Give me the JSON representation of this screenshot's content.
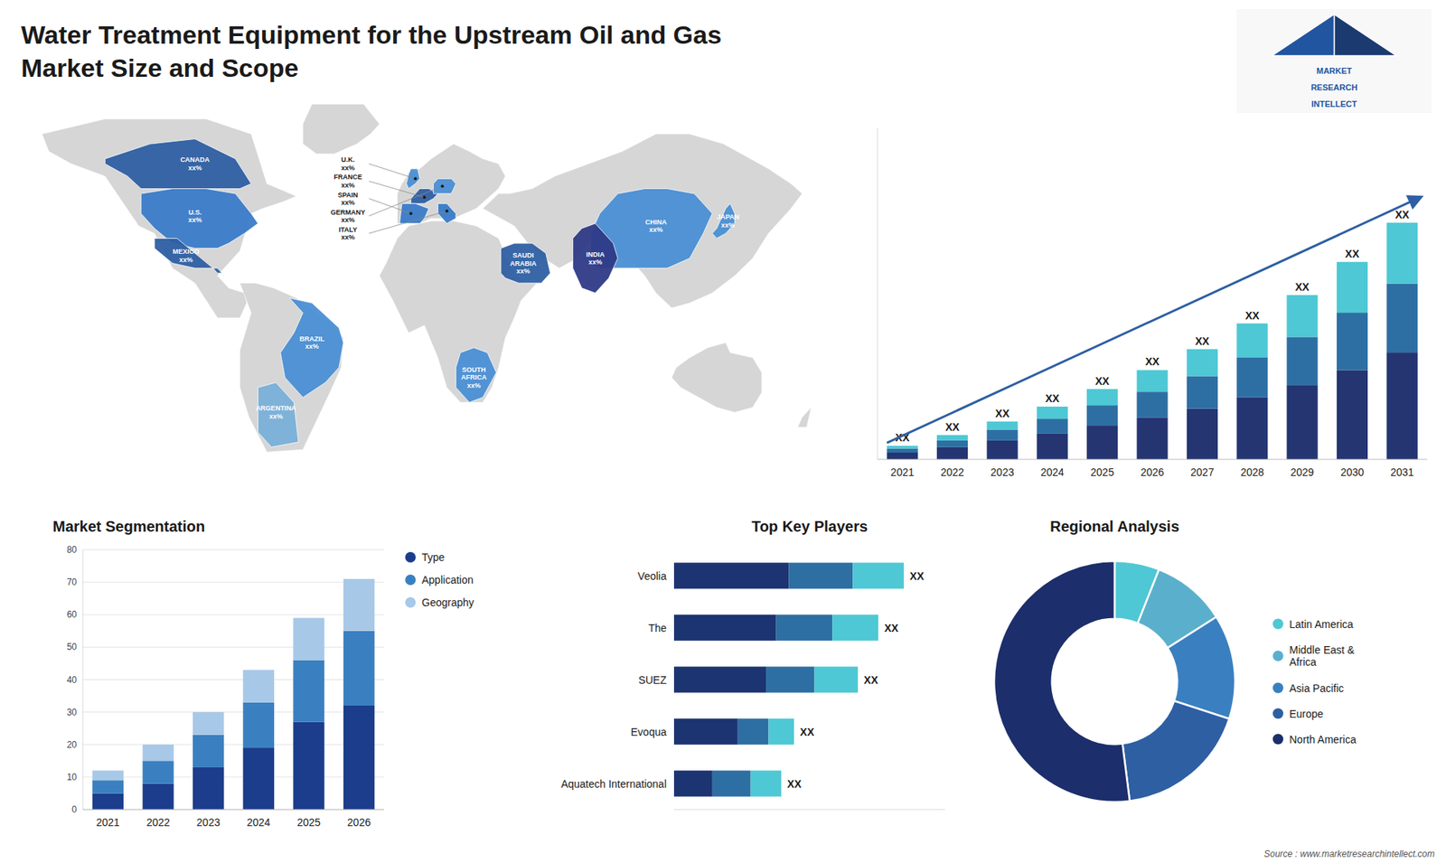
{
  "title": "Water Treatment Equipment for the Upstream Oil and Gas",
  "subtitle": "Market Size and Scope",
  "logo": [
    "MARKET",
    "RESEARCH",
    "INTELLECT"
  ],
  "source": "Source : www.marketresearchintellect.com",
  "chart_data": [
    {
      "type": "map",
      "annotations": [
        "U.S.\nxx%",
        "CANADA\nxx%",
        "MEXICO\nxx%",
        "BRAZIL\nxx%",
        "ARGENTINA\nxx%",
        "U.K.\nxx%",
        "FRANCE\nxx%",
        "SPAIN\nxx%",
        "GERMANY\nxx%",
        "ITALY\nxx%",
        "SAUDI\nARABIA\nxx%",
        "SOUTH\nAFRICA\nxx%",
        "CHINA\nxx%",
        "INDIA\nxx%",
        "JAPAN\nxx%"
      ]
    },
    {
      "type": "bar",
      "stacked": true,
      "categories": [
        2021,
        2022,
        2023,
        2024,
        2025,
        2026,
        2027,
        2028,
        2029,
        2030,
        2031
      ],
      "series": [
        {
          "color": "#243572",
          "values": [
            1.0,
            1.8,
            2.8,
            3.8,
            5.0,
            6.2,
            7.5,
            9.2,
            11.0,
            13.2,
            15.8
          ]
        },
        {
          "color": "#2e6fa3",
          "values": [
            0.6,
            1.0,
            1.6,
            2.2,
            3.0,
            3.8,
            4.8,
            5.9,
            7.1,
            8.5,
            10.2
          ]
        },
        {
          "color": "#4ec8d4",
          "values": [
            0.4,
            0.8,
            1.2,
            1.8,
            2.4,
            3.2,
            4.0,
            5.0,
            6.2,
            7.5,
            9.0
          ]
        }
      ],
      "ylim": [
        0,
        49
      ],
      "tick_labels": "x",
      "annotations": [
        "XX",
        "XX",
        "XX",
        "XX",
        "XX",
        "XX",
        "XX",
        "XX",
        "XX",
        "XX",
        "XX"
      ]
    },
    {
      "type": "bar",
      "stacked": true,
      "title": "Market Segmentation",
      "categories": [
        2021,
        2022,
        2023,
        2024,
        2025,
        2026
      ],
      "series": [
        {
          "name": "Type",
          "color": "#1c3d8c",
          "values": [
            5,
            8,
            13,
            19,
            27,
            32
          ]
        },
        {
          "name": "Application",
          "color": "#3a80c0",
          "values": [
            4,
            7,
            10,
            14,
            19,
            23
          ]
        },
        {
          "name": "Geography",
          "color": "#a8c8e8",
          "values": [
            3,
            5,
            7,
            10,
            13,
            16
          ]
        }
      ],
      "ylim": [
        0,
        80
      ],
      "yticks": [
        0,
        10,
        20,
        30,
        40,
        50,
        60,
        70,
        80
      ],
      "grid": true,
      "legend": "right"
    },
    {
      "type": "bar",
      "orientation": "horizontal",
      "stacked": true,
      "title": "Top Key Players",
      "categories": [
        "Veolia",
        "The",
        "SUEZ",
        "Evoqua",
        "Aquatech International"
      ],
      "series": [
        {
          "color": "#1c3472",
          "values": [
            45,
            40,
            36,
            25,
            15
          ]
        },
        {
          "color": "#2e6fa3",
          "values": [
            25,
            22,
            19,
            12,
            15
          ]
        },
        {
          "color": "#4ec8d4",
          "values": [
            20,
            18,
            17,
            10,
            12
          ]
        }
      ],
      "xlim": [
        0,
        106.2
      ],
      "tick_labels": "y",
      "annotations": [
        "XX",
        "XX",
        "XX",
        "XX",
        "XX"
      ]
    },
    {
      "type": "donut",
      "title": "Regional Analysis",
      "categories": [
        "Latin America",
        "Middle East &\nAfrica",
        "Asia Pacific",
        "Europe",
        "North America"
      ],
      "values": [
        6,
        10,
        14,
        18,
        52
      ],
      "colors": [
        "#4ec8d4",
        "#5ab0cc",
        "#3a80c0",
        "#2e5fa3",
        "#1c2e6b"
      ],
      "legend": "right"
    }
  ]
}
